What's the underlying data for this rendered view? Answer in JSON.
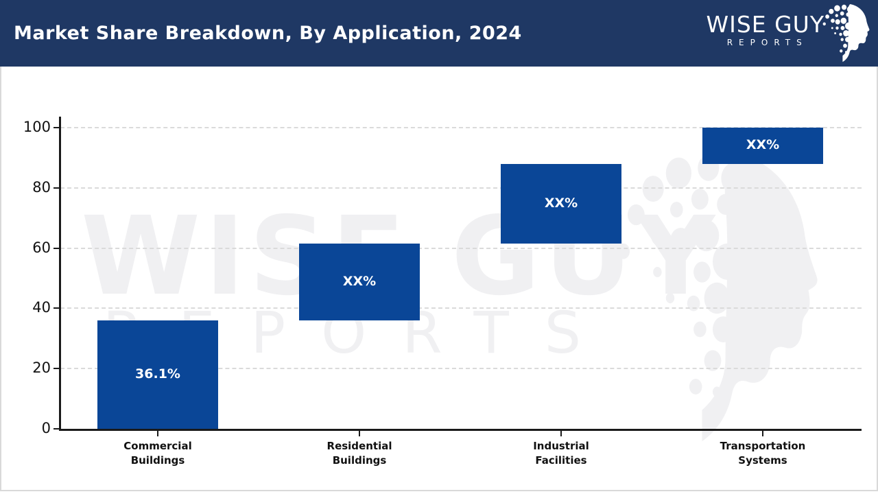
{
  "header": {
    "title": "Market Share Breakdown, By Application, 2024",
    "logo": {
      "line1": "WISE GUY",
      "line2": "REPORTS"
    }
  },
  "watermark": {
    "line1": "WISE GUY",
    "line2": "REPORTS"
  },
  "colors": {
    "header_bg": "#1f3864",
    "bar": "#0a4697",
    "bar_label_text": "#ffffff",
    "grid": "#dadada",
    "axis": "#1a1a1a",
    "watermark": "#f0f0f2"
  },
  "chart_data": {
    "type": "bar",
    "subtype": "waterfall",
    "title": "Market Share Breakdown, By Application, 2024",
    "categories": [
      "Commercial\nBuildings",
      "Residential\nBuildings",
      "Industrial\nFacilities",
      "Transportation\nSystems"
    ],
    "segments": [
      {
        "category": "Commercial Buildings",
        "start": 0,
        "end": 36.1,
        "label": "36.1%"
      },
      {
        "category": "Residential Buildings",
        "start": 36.1,
        "end": 61.5,
        "label": "XX%"
      },
      {
        "category": "Industrial Facilities",
        "start": 61.5,
        "end": 88.0,
        "label": "XX%"
      },
      {
        "category": "Transportation Systems",
        "start": 88.0,
        "end": 100,
        "label": "XX%"
      }
    ],
    "yticks": [
      0,
      20,
      40,
      60,
      80,
      100
    ],
    "ylim": [
      0,
      100
    ],
    "xlabel": "",
    "ylabel": "",
    "grid": "horizontal-dashed",
    "legend_position": "none"
  }
}
